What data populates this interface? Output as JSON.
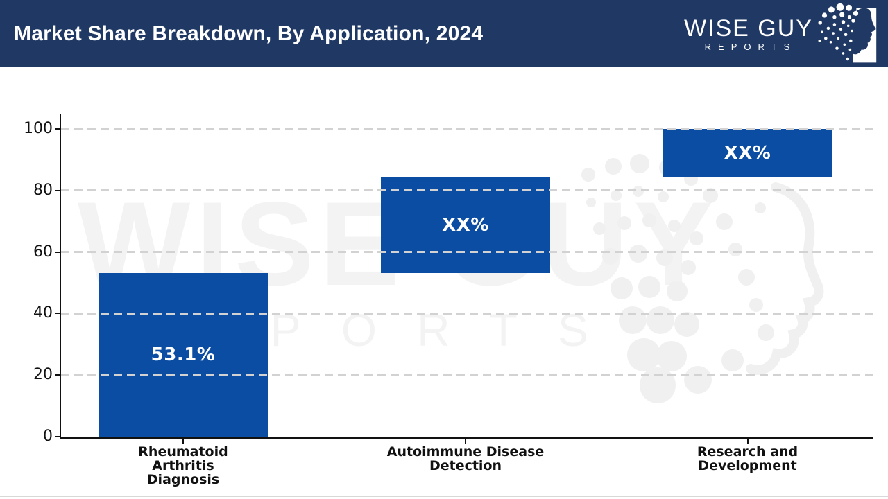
{
  "header": {
    "title": "Market Share Breakdown, By Application, 2024",
    "logo": {
      "line1": "WISE GUY",
      "line2": "REPORTS"
    }
  },
  "watermark": {
    "line1": "WISE GUY",
    "line2": "REPORTS"
  },
  "colors": {
    "header_bg": "#1f3864",
    "bar": "#0b4da2",
    "bar_label": "#ffffff",
    "grid": "#d2d2d2",
    "axis": "#111111",
    "watermark": "#f3f3f3",
    "divider": "#d8d8d8"
  },
  "chart_data": {
    "type": "bar",
    "subtype": "stepped-waterfall",
    "title": "Market Share Breakdown, By Application, 2024",
    "categories": [
      {
        "name": "Rheumatoid Arthritis Diagnosis",
        "lines": [
          "Rheumatoid",
          "Arthritis",
          "Diagnosis"
        ]
      },
      {
        "name": "Autoimmune Disease Detection",
        "lines": [
          "Autoimmune Disease",
          "Detection"
        ]
      },
      {
        "name": "Research and Development",
        "lines": [
          "Research and",
          "Development"
        ]
      }
    ],
    "segments": [
      {
        "category": "Rheumatoid Arthritis Diagnosis",
        "from": 0,
        "to": 53.1,
        "value_label": "53.1%"
      },
      {
        "category": "Autoimmune Disease Detection",
        "from": 53.1,
        "to": 84.2,
        "value_label": "XX%"
      },
      {
        "category": "Research and Development",
        "from": 84.2,
        "to": 100,
        "value_label": "XX%"
      }
    ],
    "ylim": [
      0,
      100
    ],
    "yticks": [
      0,
      20,
      40,
      60,
      80,
      100
    ],
    "xlabel": "",
    "ylabel": "",
    "grid": "horizontal-dashed",
    "legend": "none",
    "bar_color": "#0b4da2",
    "bar_label_color": "#ffffff"
  }
}
